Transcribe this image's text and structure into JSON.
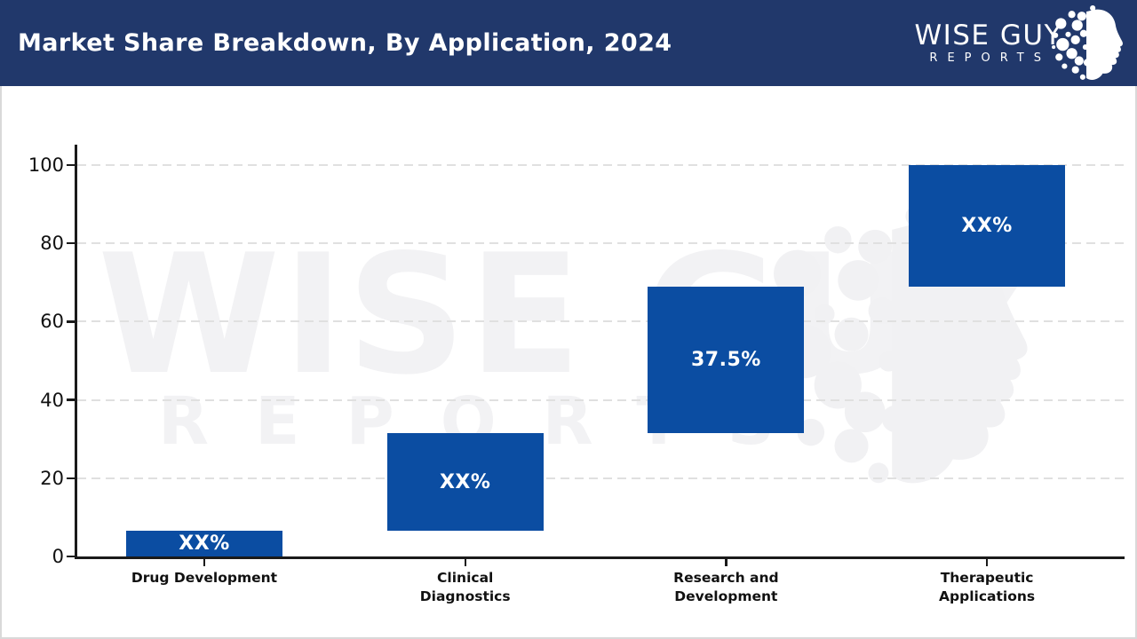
{
  "page": {
    "background": "#ffffff",
    "border_color": "#d9d9d9"
  },
  "header": {
    "background": "#21386b",
    "title": "Market Share Breakdown, By Application, 2024",
    "logo": {
      "line1": "WISE GUY",
      "line2": "REPORTS",
      "head_icon": "dotted-profile-head",
      "color": "#ffffff"
    }
  },
  "watermark": {
    "line1": "WISE GUY",
    "line2": "REPORTS",
    "head_icon": "dotted-profile-head",
    "color": "#f2f2f4"
  },
  "chart_data": {
    "type": "bar",
    "subtype": "waterfall-stacked-percentage",
    "title": "Market Share Breakdown, By Application, 2024",
    "categories": [
      "Drug Development",
      "Clinical Diagnostics",
      "Research and Development",
      "Therapeutic Applications"
    ],
    "category_label_lines": [
      [
        "Drug Development"
      ],
      [
        "Clinical",
        "Diagnostics"
      ],
      [
        "Research and",
        "Development"
      ],
      [
        "Therapeutic",
        "Applications"
      ]
    ],
    "series": [
      {
        "name": "Market share (%)",
        "segments": [
          {
            "category": "Drug Development",
            "start": 0,
            "end": 6.5,
            "value": 6.5,
            "value_label": "XX%"
          },
          {
            "category": "Clinical Diagnostics",
            "start": 6.5,
            "end": 31.5,
            "value": 25,
            "value_label": "XX%"
          },
          {
            "category": "Research and Development",
            "start": 31.5,
            "end": 69,
            "value": 37.5,
            "value_label": "37.5%"
          },
          {
            "category": "Therapeutic Applications",
            "start": 69,
            "end": 100,
            "value": 31,
            "value_label": "XX%"
          }
        ]
      }
    ],
    "xlabel": "",
    "ylabel": "",
    "ylim": [
      0,
      100
    ],
    "yticks": [
      0,
      20,
      40,
      60,
      80,
      100
    ],
    "grid": {
      "horizontal": true,
      "style": "dashed",
      "color": "#e0e0e0"
    },
    "bar_color": "#0b4da2",
    "bar_label_color": "#ffffff",
    "axis_color": "#1a1a1a",
    "legend": "none"
  }
}
